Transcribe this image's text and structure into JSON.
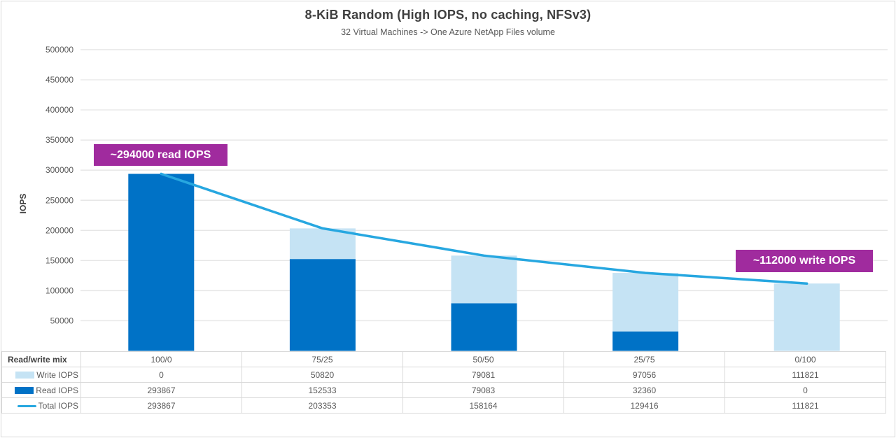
{
  "header": {
    "title": "8-KiB Random (High IOPS, no caching, NFSv3)",
    "subtitle": "32 Virtual Machines -> One Azure NetApp Files volume"
  },
  "chart_data": {
    "type": "bar",
    "subtype": "stacked-bars-with-line-overlay",
    "title": "8-KiB Random (High IOPS, no caching, NFSv3)",
    "subtitle": "32 Virtual Machines -> One Azure NetApp Files volume",
    "xlabel": "Read/write mix",
    "ylabel": "IOPS",
    "ylim": [
      0,
      500000
    ],
    "ytick_interval": 50000,
    "yticks": [
      50000,
      100000,
      150000,
      200000,
      250000,
      300000,
      350000,
      400000,
      450000,
      500000
    ],
    "grid": "horizontal",
    "legend_position": "table-left",
    "categories": [
      "100/0",
      "75/25",
      "50/50",
      "25/75",
      "0/100"
    ],
    "series": [
      {
        "name": "Write IOPS",
        "type": "bar",
        "stack": "top",
        "color": "#c5e3f4",
        "values": [
          0,
          50820,
          79081,
          97056,
          111821
        ]
      },
      {
        "name": "Read IOPS",
        "type": "bar",
        "stack": "bottom",
        "color": "#0072c6",
        "values": [
          293867,
          152533,
          79083,
          32360,
          0
        ]
      },
      {
        "name": "Total IOPS",
        "type": "line",
        "color": "#27a7e0",
        "values": [
          293867,
          203353,
          158164,
          129416,
          111821
        ]
      }
    ],
    "annotations": [
      {
        "text": "~294000 read IOPS",
        "target": "top of 100/0 bar"
      },
      {
        "text": "~112000 write IOPS",
        "target": "top of 0/100 bar"
      }
    ]
  },
  "table": {
    "row_header": "Read/write mix",
    "columns": [
      "100/0",
      "75/25",
      "50/50",
      "25/75",
      "0/100"
    ],
    "rows": [
      {
        "label": "Write IOPS",
        "swatch": "square",
        "color": "#c5e3f4",
        "values": [
          "0",
          "50820",
          "79081",
          "97056",
          "111821"
        ]
      },
      {
        "label": "Read IOPS",
        "swatch": "square",
        "color": "#0072c6",
        "values": [
          "293867",
          "152533",
          "79083",
          "32360",
          "0"
        ]
      },
      {
        "label": "Total IOPS",
        "swatch": "line",
        "color": "#27a7e0",
        "values": [
          "293867",
          "203353",
          "158164",
          "129416",
          "111821"
        ]
      }
    ]
  },
  "colors": {
    "read_bar": "#0072c6",
    "write_bar": "#c5e3f4",
    "total_line": "#27a7e0",
    "annotation_bg": "#a02b9e",
    "annotation_text": "#ffffff",
    "gridline": "#e6e6e6",
    "table_border": "#d9d9d9",
    "title_text": "#3f3f3f",
    "axis_text": "#595959"
  }
}
